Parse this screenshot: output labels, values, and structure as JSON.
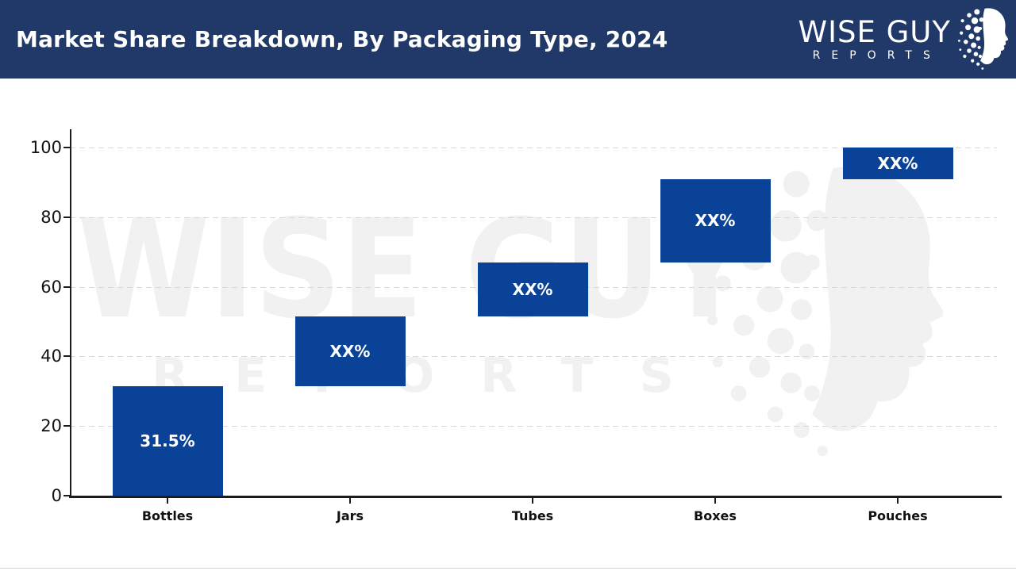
{
  "header": {
    "title": "Market Share Breakdown, By Packaging Type, 2024",
    "logo": {
      "line1": "WISE GUY",
      "line2": "REPORTS"
    }
  },
  "watermark": {
    "line1": "WISE GUY",
    "line2": "REPORTS"
  },
  "colors": {
    "header_bg": "#213968",
    "header_text": "#ffffff",
    "bar": "#0a4298",
    "bar_label": "#ffffff",
    "grid": "#d8d8d8",
    "axis": "#1c1c1c",
    "watermark": "#f1f1f2"
  },
  "chart_data": {
    "type": "bar",
    "subtype": "waterfall",
    "title": "Market Share Breakdown, By Packaging Type, 2024",
    "categories": [
      "Bottles",
      "Jars",
      "Tubes",
      "Boxes",
      "Pouches"
    ],
    "segments": [
      {
        "category": "Bottles",
        "start": 0,
        "end": 31.5,
        "label": "31.5%"
      },
      {
        "category": "Jars",
        "start": 31.5,
        "end": 51.5,
        "label": "XX%"
      },
      {
        "category": "Tubes",
        "start": 51.5,
        "end": 67,
        "label": "XX%"
      },
      {
        "category": "Boxes",
        "start": 67,
        "end": 91,
        "label": "XX%"
      },
      {
        "category": "Pouches",
        "start": 91,
        "end": 100,
        "label": "XX%"
      }
    ],
    "yticks": [
      0,
      20,
      40,
      60,
      80,
      100
    ],
    "ylim": [
      0,
      105
    ],
    "xlabel": "",
    "ylabel": "",
    "grid": "dashed-horizontal",
    "legend": "none"
  }
}
